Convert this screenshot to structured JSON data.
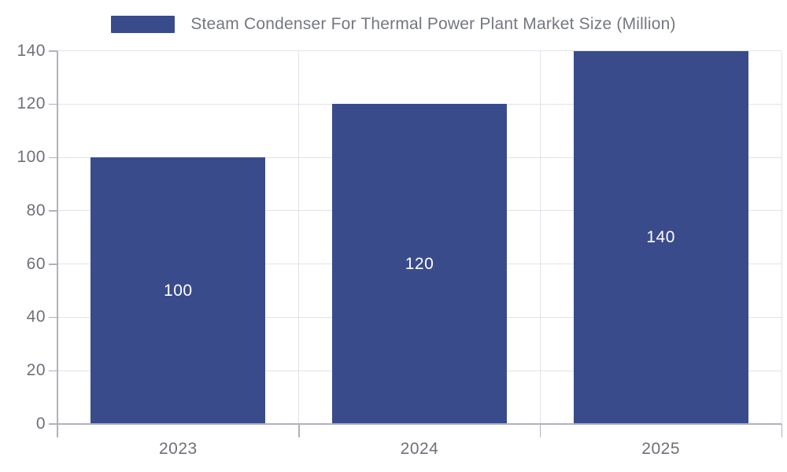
{
  "legend": {
    "label": "Steam Condenser For Thermal Power Plant Market Size (Million)"
  },
  "chart_data": {
    "type": "bar",
    "title": "",
    "xlabel": "",
    "ylabel": "",
    "categories": [
      "2023",
      "2024",
      "2025"
    ],
    "series": [
      {
        "name": "Steam Condenser For Thermal Power Plant Market Size (Million)",
        "values": [
          100,
          120,
          140
        ]
      }
    ],
    "value_labels": [
      "100",
      "120",
      "140"
    ],
    "ylim": [
      0,
      140
    ],
    "yticks": [
      0,
      20,
      40,
      60,
      80,
      100,
      120,
      140
    ],
    "grid": "horizontal-and-vertical",
    "legend_position": "top-center",
    "bar_value_label_position": "inside-center"
  },
  "colors": {
    "bar": "#3A4B8C",
    "axis_line": "#B0B2BA",
    "gridline": "#E2E3E8",
    "tick_label": "#6E7079",
    "legend_text": "#757780",
    "bar_value_label": "#FFFFFF",
    "background": "#FFFFFF"
  }
}
